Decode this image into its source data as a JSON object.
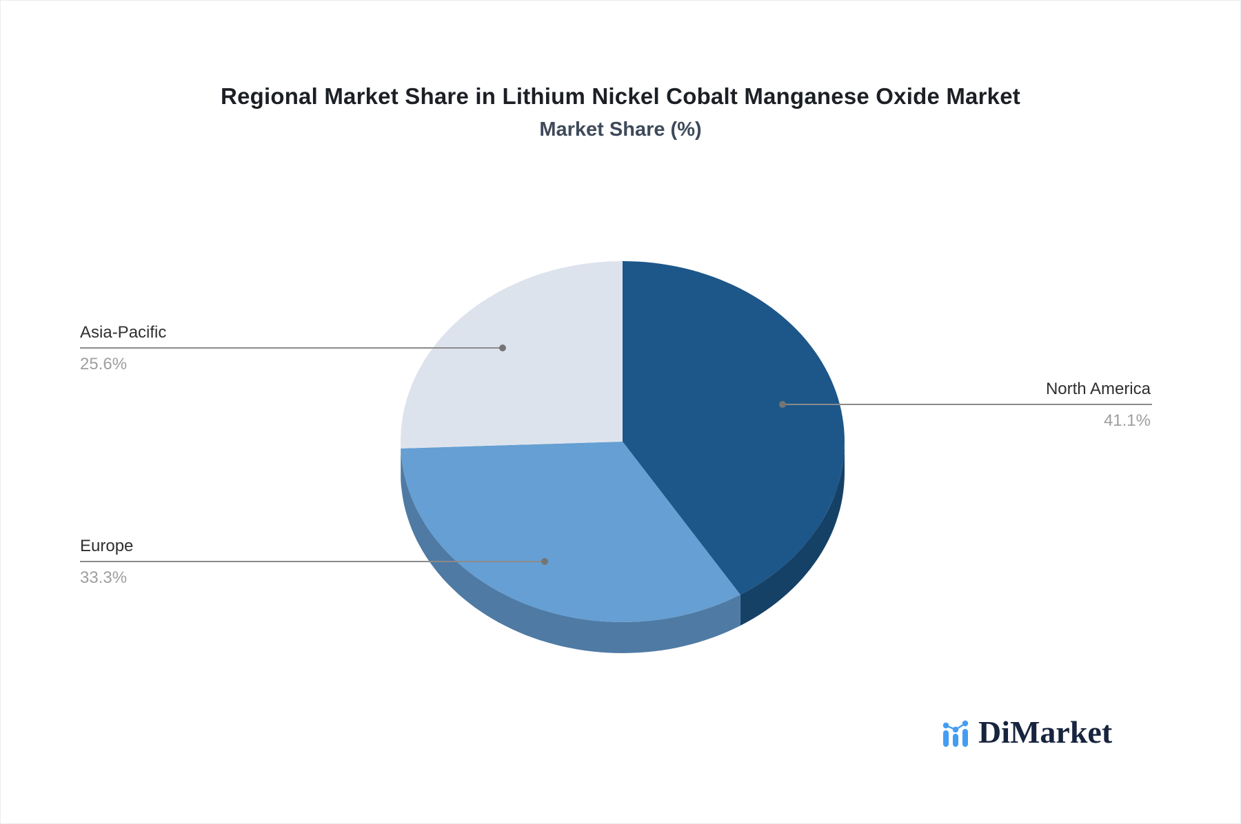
{
  "title": "Regional Market Share in Lithium Nickel Cobalt Manganese Oxide Market",
  "subtitle": "Market Share (%)",
  "chart_data": {
    "type": "pie",
    "title": "Regional Market Share in Lithium Nickel Cobalt Manganese Oxide Market",
    "subtitle": "Market Share (%)",
    "unit": "%",
    "effect": "3d",
    "direction": "clockwise",
    "start_angle": "12 o'clock",
    "legend": "none (leader-line labels)",
    "slices": [
      {
        "name": "North America",
        "value": 41.1,
        "display": "41.1%",
        "color": "#1d5789",
        "side_color": "#164167",
        "label_side": "right"
      },
      {
        "name": "Europe",
        "value": 33.3,
        "display": "33.3%",
        "color": "#659fd3",
        "side_color": "#4f7aa4",
        "label_side": "left"
      },
      {
        "name": "Asia-Pacific",
        "value": 25.6,
        "display": "25.6%",
        "color": "#dde3ed",
        "side_color": "#b9c3d3",
        "label_side": "left"
      }
    ],
    "leader_line_color": "#8a8a8a",
    "leader_dot_color": "#757575",
    "label_name_color": "#2f2f2f",
    "label_value_color": "#9e9e9e"
  },
  "logo": {
    "text": "DiMarket",
    "icon": "bar-line-chart-icon",
    "text_color": "#17243e",
    "icon_color": "#449df2"
  }
}
